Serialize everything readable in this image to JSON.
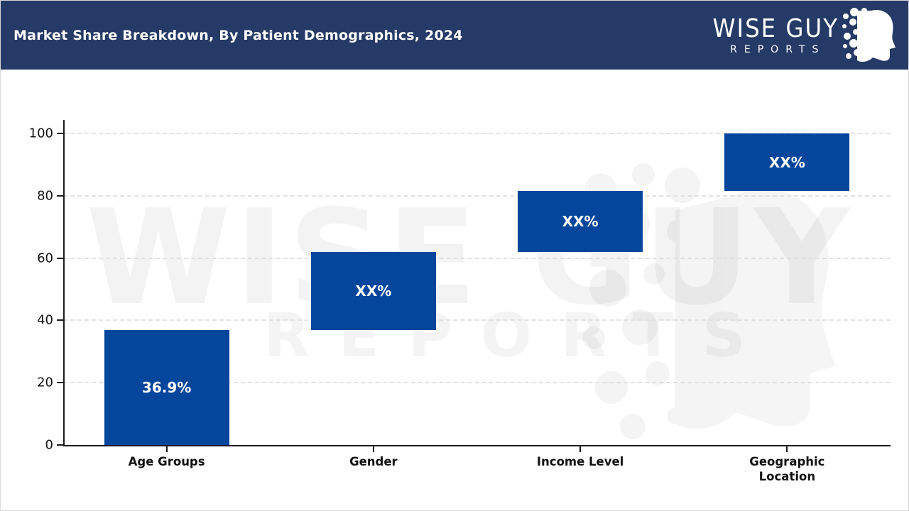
{
  "header": {
    "title": "Market Share Breakdown, By Patient Demographics, 2024",
    "bg_color": "#253a66",
    "logo": {
      "line1": "WISE GUY",
      "line2": "REPORTS"
    }
  },
  "watermark": {
    "line1": "WISE GUY",
    "line2": "REPORTS"
  },
  "chart_data": {
    "type": "bar",
    "subtype": "waterfall",
    "title": "Market Share Breakdown, By Patient Demographics, 2024",
    "categories": [
      "Age Groups",
      "Gender",
      "Income Level",
      "Geographic Location"
    ],
    "segments": [
      {
        "category": "Age Groups",
        "start": 0,
        "end": 36.9,
        "label": "36.9%"
      },
      {
        "category": "Gender",
        "start": 36.9,
        "end": 62,
        "label": "XX%"
      },
      {
        "category": "Income Level",
        "start": 62,
        "end": 81.5,
        "label": "XX%"
      },
      {
        "category": "Geographic Location",
        "start": 81.5,
        "end": 100,
        "label": "XX%"
      }
    ],
    "y_ticks": [
      0,
      20,
      40,
      60,
      80,
      100
    ],
    "ylim": [
      0,
      104
    ],
    "xlabel": "",
    "ylabel": "",
    "bar_color": "#04469c",
    "bar_label_color": "#ffffff",
    "grid": "dashed-horizontal",
    "legend": "none"
  }
}
